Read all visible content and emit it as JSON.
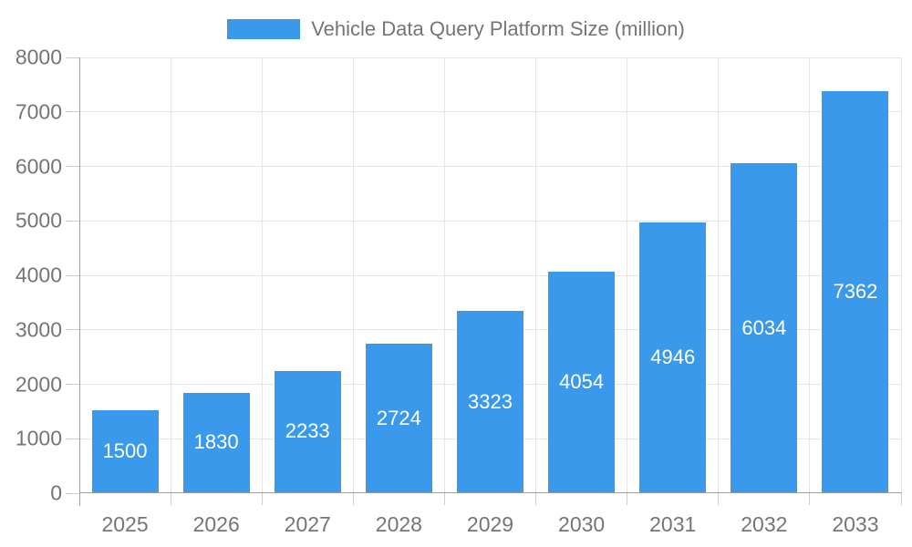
{
  "chart_data": {
    "type": "bar",
    "title": "Vehicle Data Query Platform Size (million)",
    "legend_position": "top",
    "categories": [
      "2025",
      "2026",
      "2027",
      "2028",
      "2029",
      "2030",
      "2031",
      "2032",
      "2033"
    ],
    "values": [
      1500,
      1830,
      2233,
      2724,
      3323,
      4054,
      4946,
      6034,
      7362
    ],
    "xlabel": "",
    "ylabel": "",
    "ylim": [
      0,
      8000
    ],
    "yticks": [
      0,
      1000,
      2000,
      3000,
      4000,
      5000,
      6000,
      7000,
      8000
    ],
    "grid": true,
    "value_labels": "inside-center",
    "colors": {
      "bar": "#3B99EC",
      "value_label": "#FFFFFF",
      "axis_line": "#9E9E9E",
      "tick": "#CCCCCC",
      "gridline": "#E6E6E6",
      "text": "#757575"
    }
  }
}
